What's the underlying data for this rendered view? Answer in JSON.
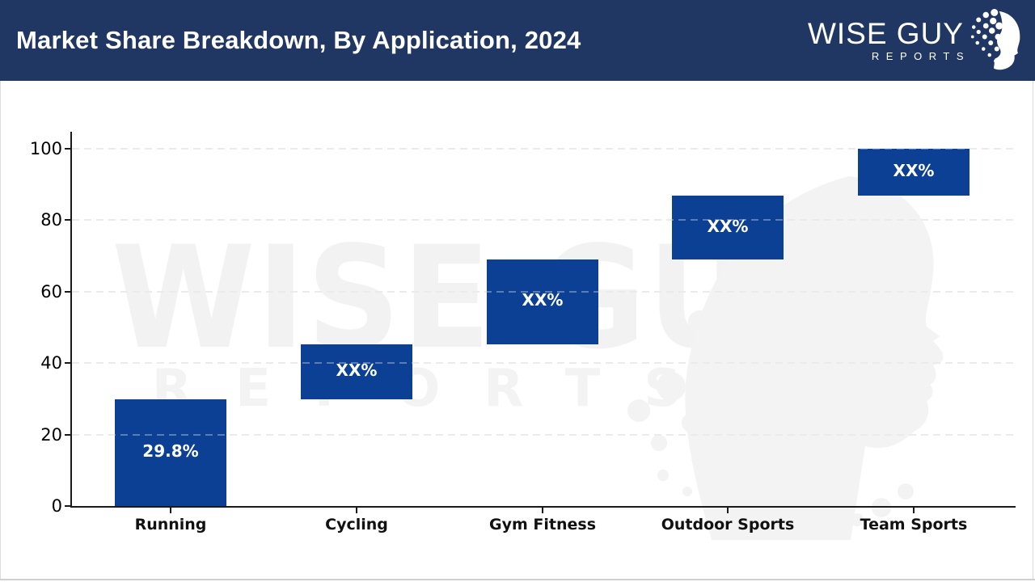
{
  "header": {
    "title": "Market Share Breakdown, By Application, 2024",
    "logo": {
      "line1": "WISE GUY",
      "line2": "REPORTS"
    }
  },
  "watermark": {
    "line1": "WISE GUY",
    "line2": "REPORTS"
  },
  "chart_data": {
    "type": "bar",
    "subtype": "waterfall",
    "title": "Market Share Breakdown, By Application, 2024",
    "categories": [
      "Running",
      "Cycling",
      "Gym Fitness",
      "Outdoor Sports",
      "Team Sports"
    ],
    "segments": [
      {
        "category": "Running",
        "start": 0,
        "end": 29.8,
        "label": "29.8%"
      },
      {
        "category": "Cycling",
        "start": 29.8,
        "end": 45.3,
        "label": "XX%"
      },
      {
        "category": "Gym Fitness",
        "start": 45.3,
        "end": 69.0,
        "label": "XX%"
      },
      {
        "category": "Outdoor Sports",
        "start": 69.0,
        "end": 86.8,
        "label": "XX%"
      },
      {
        "category": "Team Sports",
        "start": 86.8,
        "end": 100.0,
        "label": "XX%"
      }
    ],
    "yticks": [
      0,
      20,
      40,
      60,
      80,
      100
    ],
    "ylim": [
      0,
      104.5
    ],
    "xlabel": "",
    "ylabel": "",
    "grid": "horizontal-dashed",
    "legend": "none",
    "bar_color": "#0b4094",
    "bar_label_color": "#ffffff"
  },
  "colors": {
    "header_bg": "#213763",
    "bar": "#0b4094",
    "axis": "#1a1a1a",
    "grid": "#e2e2e2",
    "watermark": "#f2f2f2"
  }
}
